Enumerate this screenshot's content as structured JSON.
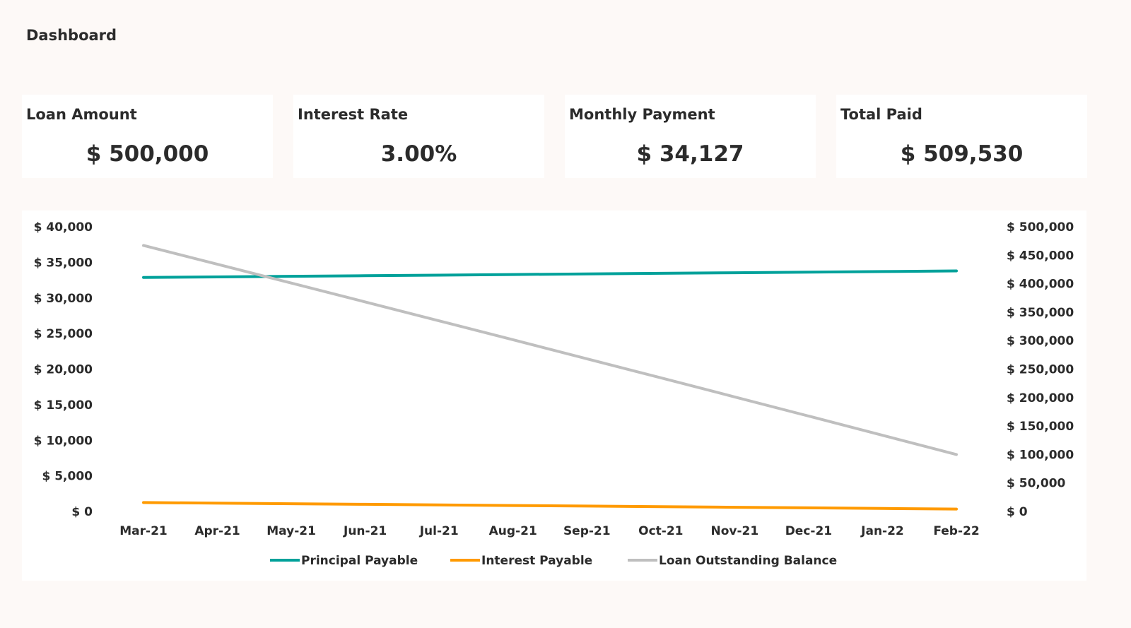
{
  "header": {
    "title": "Dashboard"
  },
  "cards": [
    {
      "label": "Loan Amount",
      "value": "$ 500,000"
    },
    {
      "label": "Interest Rate",
      "value": "3.00%"
    },
    {
      "label": "Monthly Payment",
      "value": "$ 34,127"
    },
    {
      "label": "Total Paid",
      "value": "$ 509,530"
    }
  ],
  "chart_data": {
    "type": "line",
    "categories": [
      "Mar-21",
      "Apr-21",
      "May-21",
      "Jun-21",
      "Jul-21",
      "Aug-21",
      "Sep-21",
      "Oct-21",
      "Nov-21",
      "Dec-21",
      "Jan-22",
      "Feb-22"
    ],
    "y_left": {
      "range": [
        0,
        40000
      ],
      "ticks": [
        "$ 0",
        "$ 5,000",
        "$ 10,000",
        "$ 15,000",
        "$ 20,000",
        "$ 25,000",
        "$ 30,000",
        "$ 35,000",
        "$ 40,000"
      ]
    },
    "y_right": {
      "range": [
        0,
        500000
      ],
      "ticks": [
        "$ 0",
        "$ 50,000",
        "$ 100,000",
        "$ 150,000",
        "$ 200,000",
        "$ 250,000",
        "$ 300,000",
        "$ 350,000",
        "$ 400,000",
        "$ 450,000",
        "$ 500,000"
      ]
    },
    "grid": false,
    "legend_position": "bottom",
    "series": [
      {
        "name": "Principal Payable",
        "axis": "left",
        "color": "#00a19a",
        "values": [
          32877,
          32959,
          33042,
          33124,
          33207,
          33290,
          33373,
          33457,
          33540,
          33624,
          33708,
          33793
        ]
      },
      {
        "name": "Interest Payable",
        "axis": "left",
        "color": "#ff9a00",
        "values": [
          1250,
          1168,
          1085,
          1003,
          920,
          837,
          754,
          670,
          587,
          503,
          419,
          335
        ]
      },
      {
        "name": "Loan Outstanding Balance",
        "axis": "right",
        "color": "#bfbfbf",
        "values": [
          467123,
          434164,
          401122,
          367998,
          334791,
          301501,
          268128,
          234671,
          201131,
          167507,
          133798,
          100006
        ]
      }
    ]
  }
}
